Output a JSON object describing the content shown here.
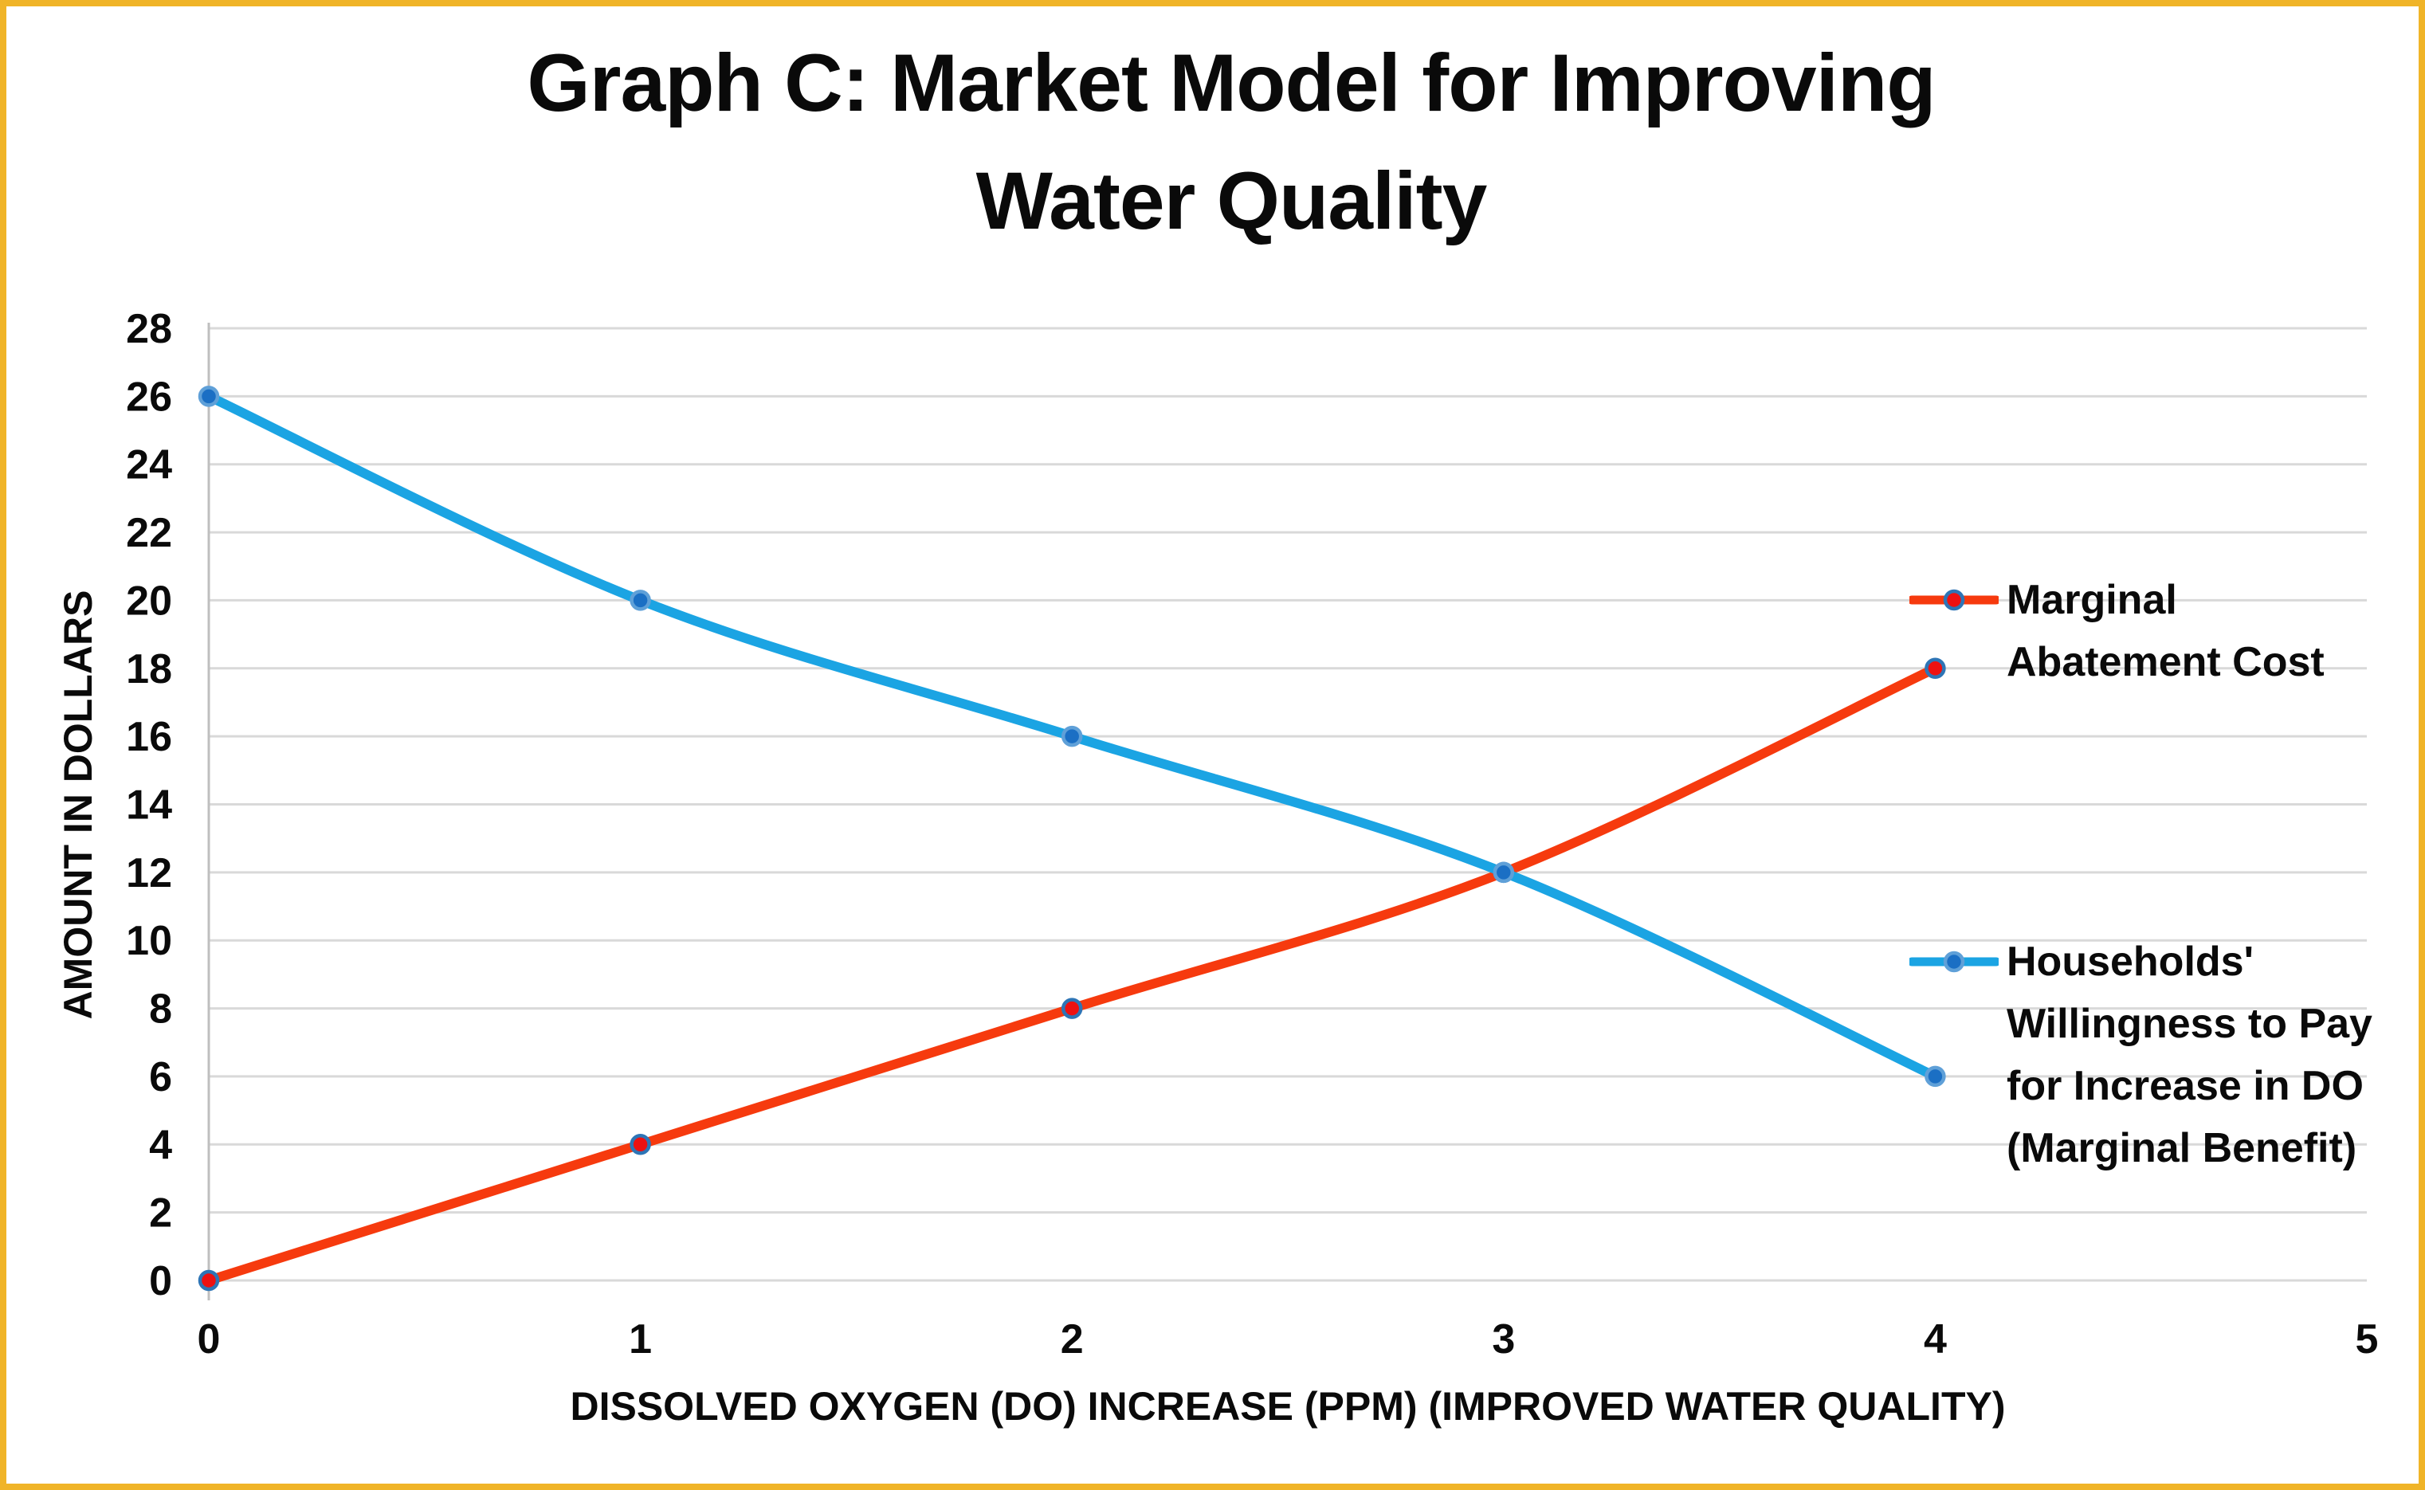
{
  "slide": {
    "background_color": "#FFFFFF",
    "border_color": "#F0B428"
  },
  "chart_data": {
    "type": "line",
    "title": "Graph C: Market Model for Improving Water Quality",
    "title_lines": [
      "Graph C: Market Model for Improving",
      "Water Quality"
    ],
    "xlabel": "DISSOLVED OXYGEN (DO) INCREASE (PPM) (IMPROVED WATER QUALITY)",
    "ylabel": "AMOUNT IN DOLLARS",
    "xlim": [
      0,
      5
    ],
    "ylim": [
      0,
      28
    ],
    "x_ticks": [
      0,
      1,
      2,
      3,
      4,
      5
    ],
    "y_ticks": [
      0,
      2,
      4,
      6,
      8,
      10,
      12,
      14,
      16,
      18,
      20,
      22,
      24,
      26,
      28
    ],
    "grid": "horizontal",
    "gridline_color": "#D9D9D9",
    "axis_line_color": "#BFBFBF",
    "text_color": "#0A0A0A",
    "legend_position": "right-inside",
    "series": [
      {
        "name": "Marginal Abatement Cost",
        "legend_lines": [
          "Marginal",
          "Abatement Cost"
        ],
        "x": [
          0,
          1,
          2,
          3,
          4
        ],
        "values": [
          0,
          4,
          8,
          12,
          18
        ],
        "smoothed": true,
        "line_color": "#F63A0E",
        "marker_fill": "#EE1111",
        "marker_ring": "#2E75B6"
      },
      {
        "name": "Households' Willingness to Pay for Increase in DO (Marginal Benefit)",
        "legend_lines": [
          "Households'",
          "Willingness to Pay",
          "for Increase in DO",
          "(Marginal Benefit)"
        ],
        "x": [
          0,
          1,
          2,
          3,
          4
        ],
        "values": [
          26,
          20,
          16,
          12,
          6
        ],
        "smoothed": true,
        "line_color": "#1BA4E3",
        "marker_fill": "#1B6FC4",
        "marker_ring": "#5FA0D8"
      }
    ]
  }
}
